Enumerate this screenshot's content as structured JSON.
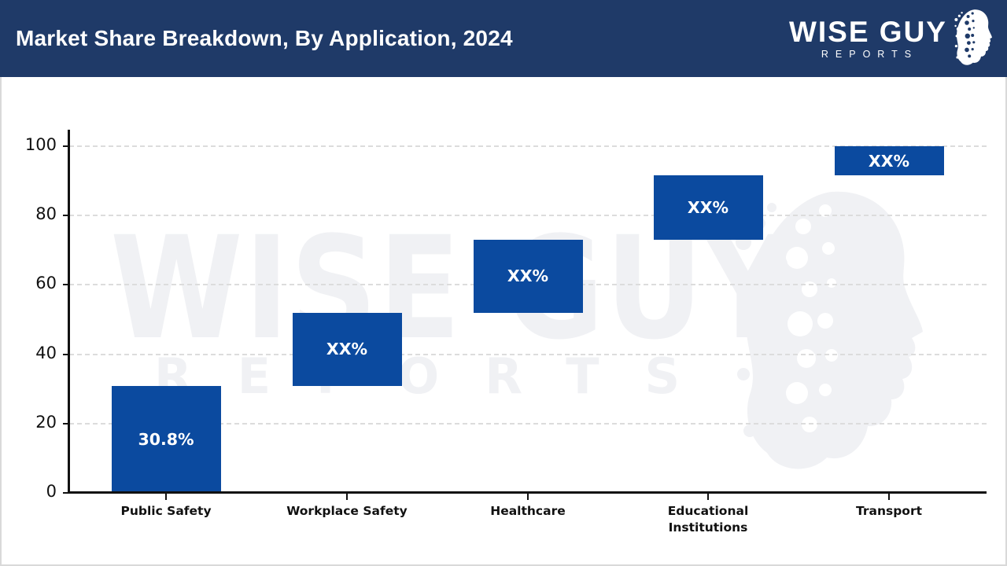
{
  "header": {
    "title": "Market Share Breakdown, By Application, 2024",
    "logo": {
      "brand_line1": "WISE GUY",
      "brand_line2": "REPORTS"
    }
  },
  "watermark": {
    "line1": "WISE GUY",
    "line2": "REPORTS"
  },
  "colors": {
    "header_bg": "#1f3a68",
    "bar_fill": "#0b4a9f",
    "bar_label": "#ffffff",
    "axis": "#111111",
    "grid": "#dcdcdc",
    "tick_label": "#111111",
    "watermark": "#f0f1f4"
  },
  "chart_data": {
    "type": "bar",
    "variant": "waterfall",
    "title": "Market Share Breakdown, By Application, 2024",
    "categories": [
      "Public Safety",
      "Workplace Safety",
      "Healthcare",
      "Educational Institutions",
      "Transport"
    ],
    "bars": [
      {
        "category": "Public Safety",
        "start": 0,
        "end": 30.8,
        "label": "30.8%"
      },
      {
        "category": "Workplace Safety",
        "start": 30.8,
        "end": 52,
        "label": "XX%"
      },
      {
        "category": "Healthcare",
        "start": 52,
        "end": 73,
        "label": "XX%"
      },
      {
        "category": "Educational Institutions",
        "start": 73,
        "end": 91.5,
        "label": "XX%"
      },
      {
        "category": "Transport",
        "start": 91.5,
        "end": 100,
        "label": "XX%"
      }
    ],
    "xlabel": "",
    "ylabel": "",
    "ylim": [
      0,
      100
    ],
    "yticks": [
      0,
      20,
      40,
      60,
      80,
      100
    ],
    "grid": "horizontal-dashed",
    "legend": false,
    "bar_color": "#0b4a9f"
  }
}
